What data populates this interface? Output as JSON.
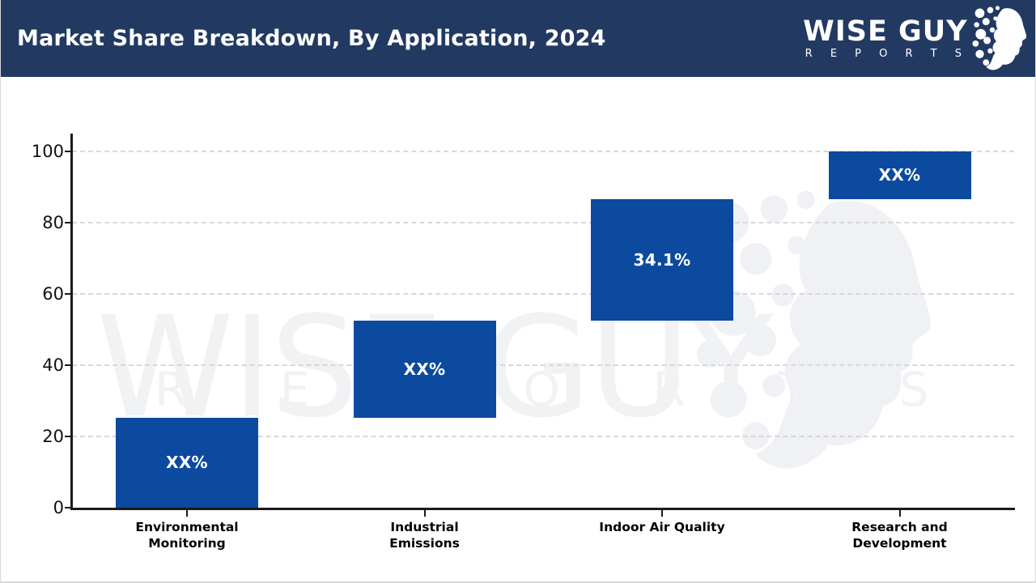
{
  "header": {
    "title": "Market Share Breakdown, By Application, 2024",
    "background_color": "#223a62",
    "logo": {
      "line1": "WISE GUY",
      "line2": "R E P O R T S"
    }
  },
  "watermark": {
    "line1": "WISE GUY",
    "line2": "R E P O R T S"
  },
  "chart_data": {
    "type": "bar",
    "subtype": "floating-waterfall",
    "title": "Market Share Breakdown, By Application, 2024",
    "xlabel": "",
    "ylabel": "",
    "ylim": [
      0,
      100
    ],
    "yticks": [
      0,
      20,
      40,
      60,
      80,
      100
    ],
    "grid": "horizontal-dashed",
    "legend": "none",
    "bar_color": "#0b4a9e",
    "bar_label_color": "#ffffff",
    "categories": [
      "Environmental Monitoring",
      "Industrial Emissions",
      "Indoor Air Quality",
      "Research and Development"
    ],
    "bars": [
      {
        "category": "Environmental\nMonitoring",
        "start": 0,
        "end": 25.3,
        "value_label": "XX%"
      },
      {
        "category": "Industrial\nEmissions",
        "start": 25.3,
        "end": 52.6,
        "value_label": "XX%"
      },
      {
        "category": "Indoor Air Quality",
        "start": 52.6,
        "end": 86.7,
        "value_label": "34.1%"
      },
      {
        "category": "Research and\nDevelopment",
        "start": 86.7,
        "end": 100,
        "value_label": "XX%"
      }
    ]
  }
}
